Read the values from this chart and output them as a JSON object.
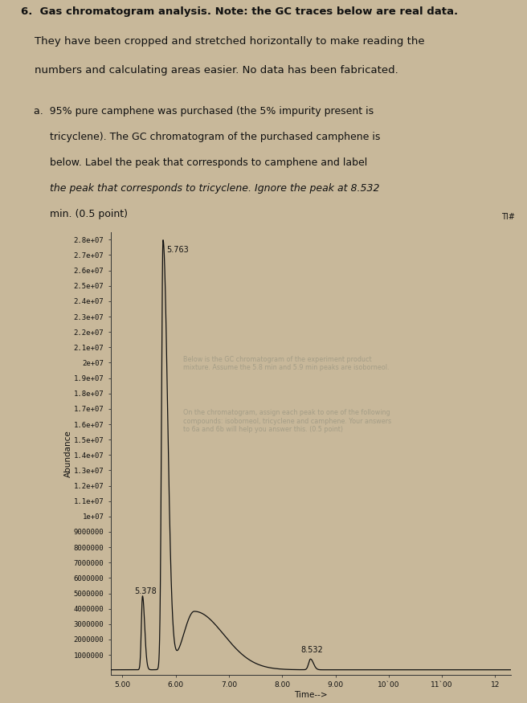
{
  "title_line1": "6.  Gas chromatogram analysis. Note: the GC traces below are real data.",
  "title_line2": "    They have been cropped and stretched horizontally to make reading the",
  "title_line3": "    numbers and calculating areas easier. No data has been fabricated.",
  "subtitle_line1": "    a.  95% pure camphene was purchased (the 5% impurity present is",
  "subtitle_line2": "         tricyclene). The GC chromatogram of the purchased camphene is",
  "subtitle_line3": "         below. Label the peak that corresponds to camphene and label",
  "subtitle_line4": "         the peak that corresponds to tricyclene. Ignore the peak at 8.532",
  "subtitle_line5": "         min. (0.5 point)",
  "ylabel": "Abundance",
  "xlabel": "Time-->",
  "corner_label": "TI#",
  "peak1_label": "5.378",
  "peak1_time": 5.378,
  "peak1_amp": 4800000,
  "peak2_label": "5.763",
  "peak2_time": 5.763,
  "peak2_amp": 27900000.0,
  "peak3_label": "8.532",
  "peak3_time": 8.532,
  "peak3_amp": 700000,
  "xmin": 4.78,
  "xmax": 12.3,
  "ymax": 28500000.0,
  "bg_color": "#c8b89a",
  "plot_bg": "#c8b89a",
  "text_color": "#111111",
  "line_color": "#111111",
  "yticks": [
    28000000,
    27000000,
    26000000,
    25000000,
    24000000,
    23000000,
    22000000,
    21000000,
    20000000,
    19000000,
    18000000,
    17000000,
    16000000,
    15000000,
    14000000,
    13000000,
    12000000,
    11000000,
    10000000,
    9000000,
    8000000,
    7000000,
    6000000,
    5000000,
    4000000,
    3000000,
    2000000,
    1000000
  ],
  "ytick_labels": [
    "2.8e+07",
    "2.7e+07",
    "2.6e+07",
    "2.5e+07",
    "2.4e+07",
    "2.3e+07",
    "2.2e+07",
    "2.1e+07",
    "2e+07",
    "1.9e+07",
    "1.8e+07",
    "1.7e+07",
    "1.6e+07",
    "1.5e+07",
    "1.4e+07",
    "1.3e+07",
    "1.2e+07",
    "1.1e+07",
    "1e+07",
    "9000000",
    "8000000",
    "7000000",
    "6000000",
    "5000000",
    "4000000",
    "3000000",
    "2000000",
    "1000000"
  ],
  "xticks": [
    5.0,
    6.0,
    7.0,
    8.0,
    9.0,
    10.0,
    11.0,
    12.0
  ],
  "xtick_labels": [
    "5.00",
    "6.00",
    "7.00",
    "8.00",
    "9.00",
    "10`00",
    "11`00",
    "12"
  ],
  "overlay_text1": "Below is the GC chromatogram of the experiment product",
  "overlay_text2": "mixture. Assume the 5.8 min and 5.9 min peaks are isoborneol.",
  "overlay_text3": "On the chromatogram, assign each peak to one of the following",
  "overlay_text4": "compounds: isoborneol, tricyclene and camphene. Your answers",
  "overlay_text5": "to 6a and 6b will help you answer this. (0.5 point)"
}
